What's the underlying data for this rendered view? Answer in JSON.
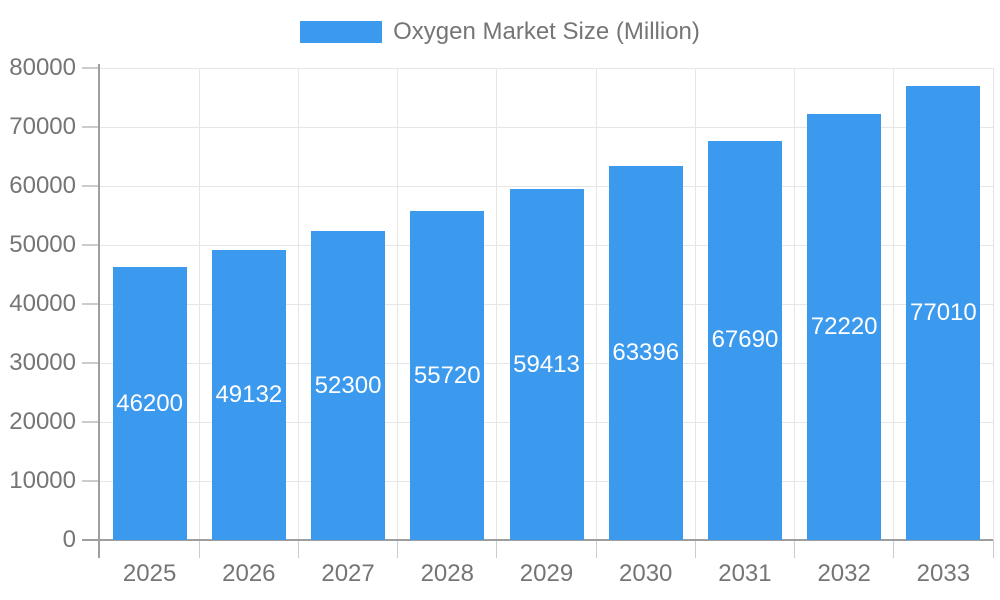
{
  "chart_data": {
    "type": "bar",
    "title": "Oxygen Market Size (Million)",
    "categories": [
      "2025",
      "2026",
      "2027",
      "2028",
      "2029",
      "2030",
      "2031",
      "2032",
      "2033"
    ],
    "series": [
      {
        "name": "Oxygen Market Size (Million)",
        "values": [
          46200,
          49132,
          52300,
          55720,
          59413,
          63396,
          67690,
          72220,
          77010
        ]
      }
    ],
    "xlabel": "",
    "ylabel": "",
    "ylim": [
      0,
      80000
    ],
    "ytick_step": 10000,
    "ytick_labels": [
      "0",
      "10000",
      "20000",
      "30000",
      "40000",
      "50000",
      "60000",
      "70000",
      "80000"
    ],
    "grid": true,
    "legend_position": "top",
    "value_labels": "inside-center-white"
  },
  "style": {
    "bar_color": "#3B99EE",
    "grid_color": "#e6e6e6",
    "axis_line_color": "#9e9e9e",
    "tick_color": "#cccccc",
    "text_color": "#757575",
    "value_label_color": "#ffffff",
    "background_color": "#ffffff"
  }
}
